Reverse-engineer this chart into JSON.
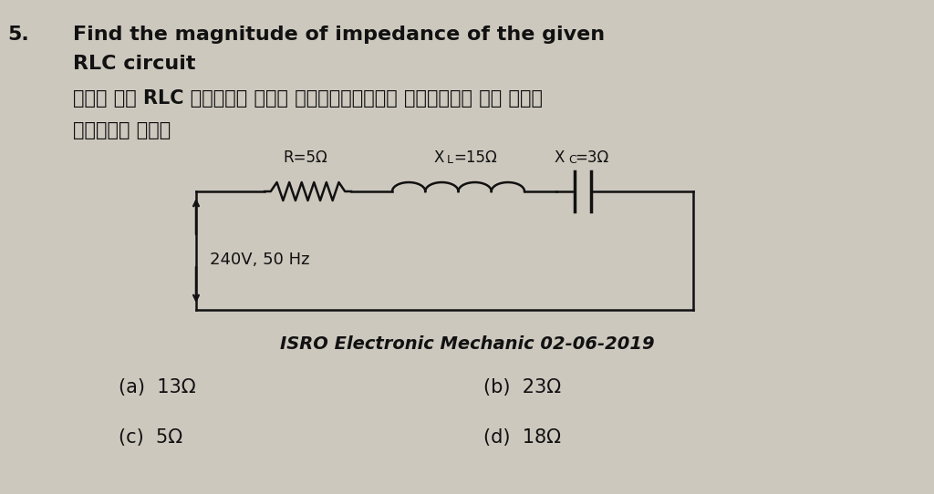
{
  "question_number": "5.",
  "title_en1": "Find the magnitude of impedance of the given",
  "title_en2": "RLC circuit",
  "title_hi1": "दिए गए RLC परिपथ में प्रतिबाधा परिमाण का मान",
  "title_hi2": "ज्ञात करे",
  "R_label": "R=5Ω",
  "XL_label": "X",
  "XL_sub": "L",
  "XL_val": "=15Ω",
  "XC_label": "X",
  "XC_sub": "C",
  "XC_val": "=3Ω",
  "voltage_label": "240V, 50 Hz",
  "source_label": "ISRO Electronic Mechanic 02-06-2019",
  "opt_a": "(a)  13Ω",
  "opt_b": "(b)  23Ω",
  "opt_c": "(c)  5Ω",
  "opt_d": "(d)  18Ω",
  "bg_color": "#cdc8be",
  "text_color": "#111111",
  "line_color": "#111111"
}
